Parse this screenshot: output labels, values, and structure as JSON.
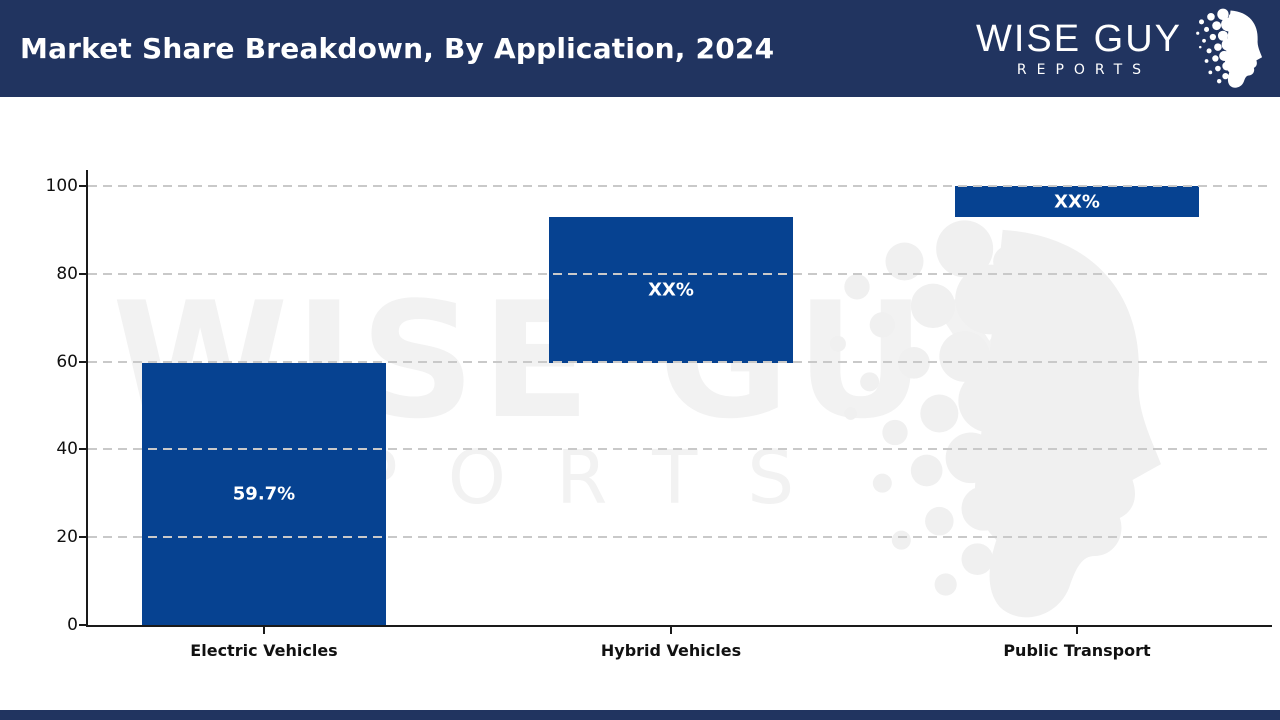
{
  "header": {
    "title": "Market Share Breakdown, By Application, 2024",
    "logo": {
      "line1": "WISE GUY",
      "line2": "REPORTS"
    }
  },
  "watermark": {
    "line1": "WISE GUY",
    "line2": "REPORTS"
  },
  "footer": {},
  "colors": {
    "header_bg": "#213460",
    "bar_fill": "#064291",
    "gridline": "#c9c9c9",
    "watermark": "#f2f2f2",
    "bar_label_text": "#ffffff",
    "axis_text": "#111111"
  },
  "chart_data": {
    "type": "bar",
    "subtype": "waterfall (floating stacked segments)",
    "title": "Market Share Breakdown, By Application, 2024",
    "categories": [
      "Electric Vehicles",
      "Hybrid Vehicles",
      "Public Transport"
    ],
    "segments": [
      {
        "category": "Electric Vehicles",
        "start": 0,
        "end": 59.7,
        "label": "59.7%"
      },
      {
        "category": "Hybrid Vehicles",
        "start": 59.7,
        "end": 92.9,
        "label": "XX%"
      },
      {
        "category": "Public Transport",
        "start": 92.9,
        "end": 100,
        "label": "XX%"
      }
    ],
    "xlabel": "",
    "ylabel": "",
    "y_ticks": [
      0,
      20,
      40,
      60,
      80,
      100
    ],
    "ylim": [
      0,
      100
    ],
    "grid": "horizontal dashed lines drawn over bars",
    "legend": "none"
  }
}
